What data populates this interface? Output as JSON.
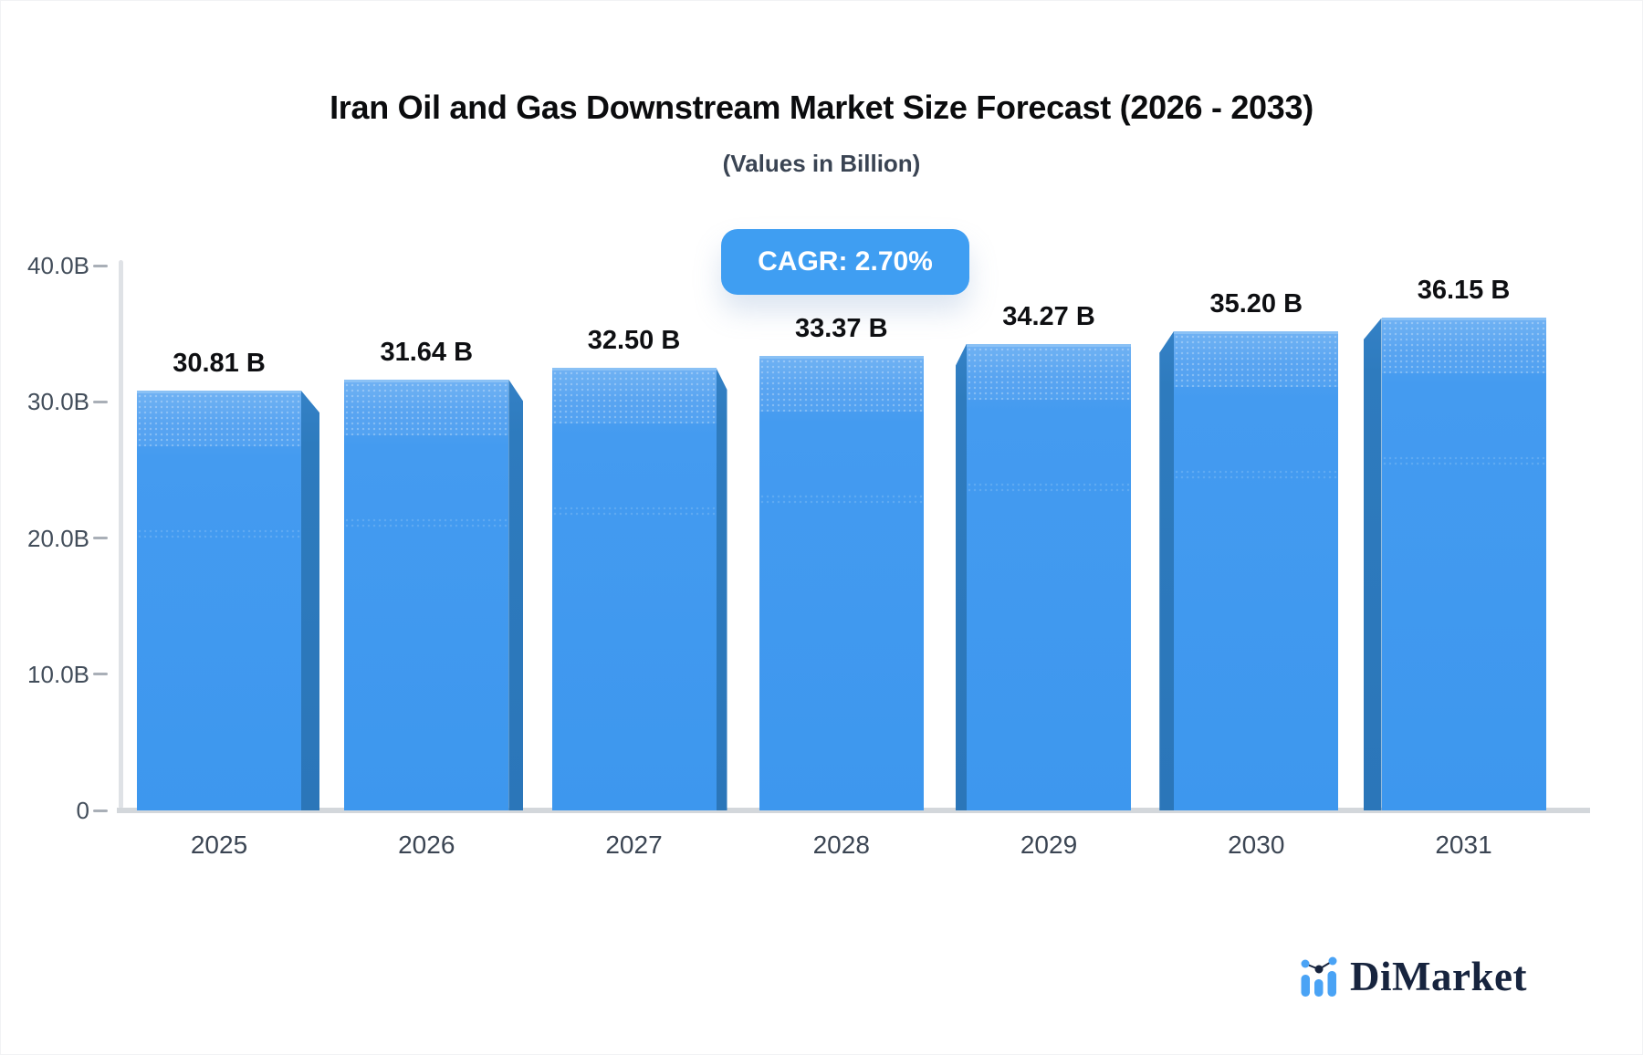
{
  "title": "Iran Oil and Gas Downstream Market Size Forecast (2026 - 2033)",
  "subtitle": "(Values in Billion)",
  "badge": {
    "label": "CAGR: 2.70%",
    "color": "#3f9ef2"
  },
  "brand": {
    "name": "DiMarket",
    "navy": "#17243e",
    "blue": "#4aa3f5"
  },
  "chart_data": {
    "type": "bar",
    "title": "Iran Oil and Gas Downstream Market Size Forecast (2026 - 2033)",
    "subtitle": "(Values in Billion)",
    "categories": [
      "2025",
      "2026",
      "2027",
      "2028",
      "2029",
      "2030",
      "2031"
    ],
    "values": [
      30.81,
      31.64,
      32.5,
      33.37,
      34.27,
      35.2,
      36.15
    ],
    "value_labels": [
      "30.81 B",
      "31.64 B",
      "32.50 B",
      "33.37 B",
      "34.27 B",
      "35.20 B",
      "36.15 B"
    ],
    "unit": "Billion",
    "xlabel": "",
    "ylabel": "",
    "ylim": [
      0,
      40
    ],
    "y_ticks": [
      "0",
      "10.0B",
      "20.0B",
      "30.0B",
      "40.0B"
    ],
    "y_tick_values": [
      0,
      10,
      20,
      30,
      40
    ],
    "grid": false,
    "legend": null,
    "annotation": "CAGR: 2.70%",
    "bar_face_color": "#429af0",
    "bar_side_color": "#2e7bbe",
    "style": "3d-beveled-bars, bevel on right for bars left of center, bevel on left for bars right of center"
  }
}
